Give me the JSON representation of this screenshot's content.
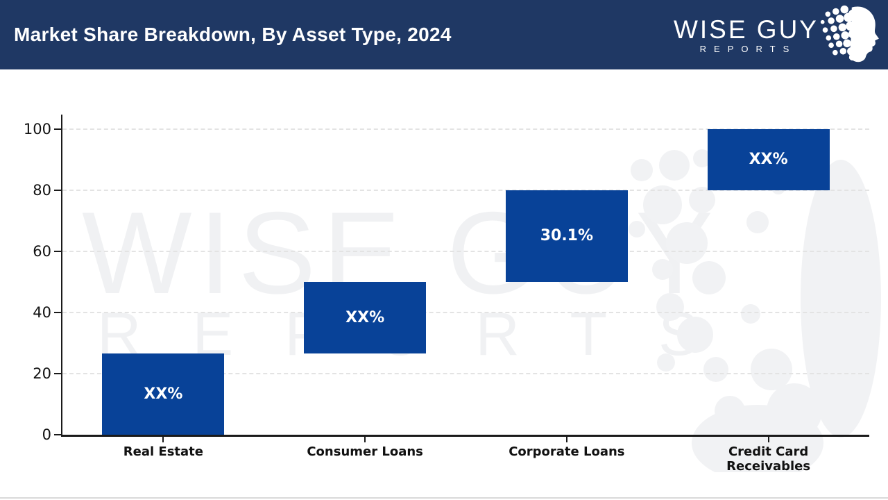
{
  "header": {
    "title": "Market Share Breakdown, By Asset Type, 2024",
    "logo": {
      "name": "WISE GUY",
      "tagline": "REPORTS"
    }
  },
  "watermark": {
    "line1": "WISE GUY",
    "line2": "REPORTS"
  },
  "chart_data": {
    "type": "bar",
    "subtype": "floating-segment-bars (waterfall-style market share breakdown)",
    "title": "Market Share Breakdown, By Asset Type, 2024",
    "categories": [
      "Real Estate",
      "Consumer Loans",
      "Corporate Loans",
      "Credit Card Receivables"
    ],
    "bars": [
      {
        "category": "Real Estate",
        "start": 0,
        "end": 26.6,
        "label": "XX%"
      },
      {
        "category": "Consumer Loans",
        "start": 26.6,
        "end": 50,
        "label": "XX%"
      },
      {
        "category": "Corporate Loans",
        "start": 50,
        "end": 80.1,
        "label": "30.1%"
      },
      {
        "category": "Credit Card Receivables",
        "start": 80.1,
        "end": 100,
        "label": "XX%"
      }
    ],
    "xlabel": "",
    "ylabel": "",
    "ylim": [
      0,
      100
    ],
    "yticks": [
      0,
      20,
      40,
      60,
      80,
      100
    ],
    "grid": "horizontal-dashed",
    "legend": "none",
    "colors": {
      "bar": "#084298",
      "bar_label": "#ffffff",
      "grid": "#e3e3e3",
      "axis": "#1a1a1a",
      "tick_label": "#111111",
      "header_bg": "#1f3864",
      "header_text": "#ffffff",
      "watermark": "#f0f1f3",
      "bottom_rule": "#d9d9d9"
    }
  }
}
